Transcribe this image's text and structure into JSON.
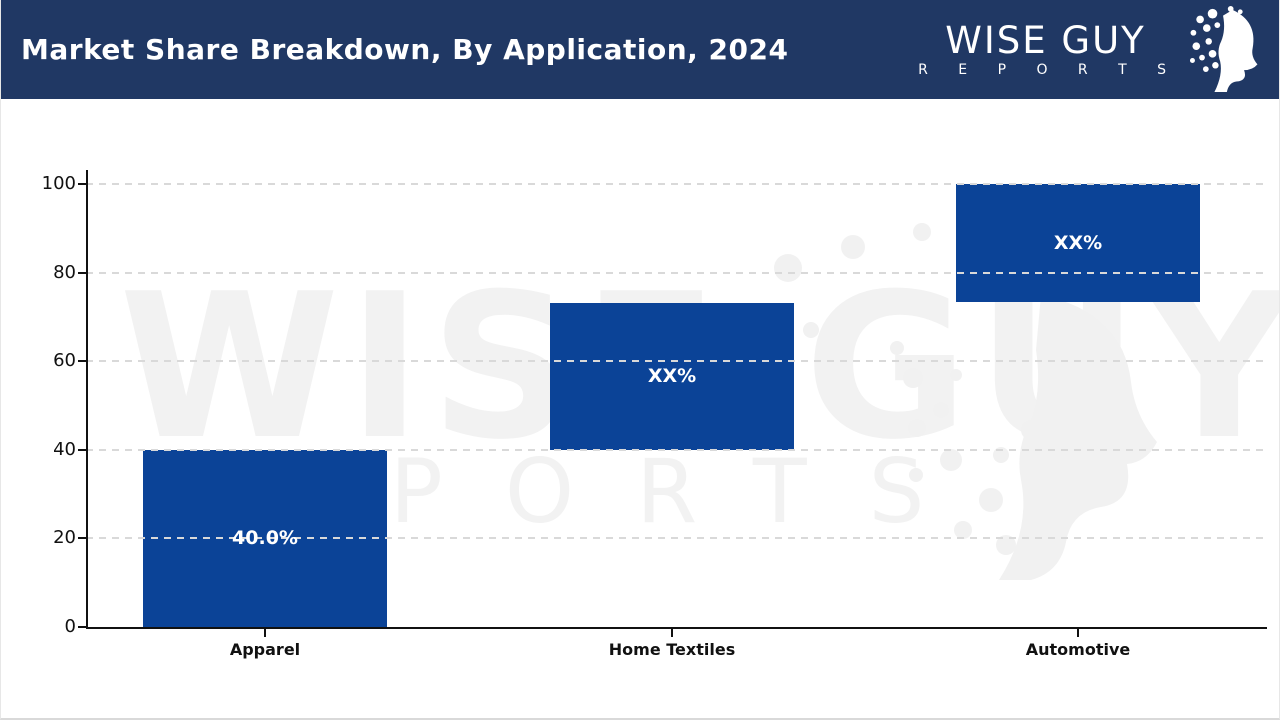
{
  "header": {
    "title": "Market Share Breakdown, By Application, 2024",
    "logo": {
      "brand_line1": "WISE GUY",
      "brand_line2": "R E P O R T S"
    }
  },
  "watermark": {
    "line1": "WISE GUY",
    "line2": "REPORTS"
  },
  "colors": {
    "header_bg": "#203864",
    "bar_fill": "#0b4397",
    "bar_label": "#ffffff",
    "axis": "#111111",
    "grid": "#d9d9d9",
    "watermark": "#f2f2f2"
  },
  "chart_data": {
    "type": "bar",
    "subtype": "waterfall",
    "title": "Market Share Breakdown, By Application, 2024",
    "categories": [
      "Apparel",
      "Home Textiles",
      "Automotive"
    ],
    "series": [
      {
        "name": "Market share (%)",
        "segments": [
          {
            "category": "Apparel",
            "start": 0,
            "end": 40,
            "value": 40.0,
            "label": "40.0%"
          },
          {
            "category": "Home Textiles",
            "start": 40,
            "end": 73.3,
            "value": 33.3,
            "label": "XX%"
          },
          {
            "category": "Automotive",
            "start": 73.3,
            "end": 100,
            "value": 26.7,
            "label": "XX%"
          }
        ]
      }
    ],
    "xlabel": "",
    "ylabel": "",
    "ylim": [
      0,
      105
    ],
    "yticks": [
      0,
      20,
      40,
      60,
      80,
      100
    ],
    "grid": "horizontal-dashed",
    "legend": "none"
  }
}
